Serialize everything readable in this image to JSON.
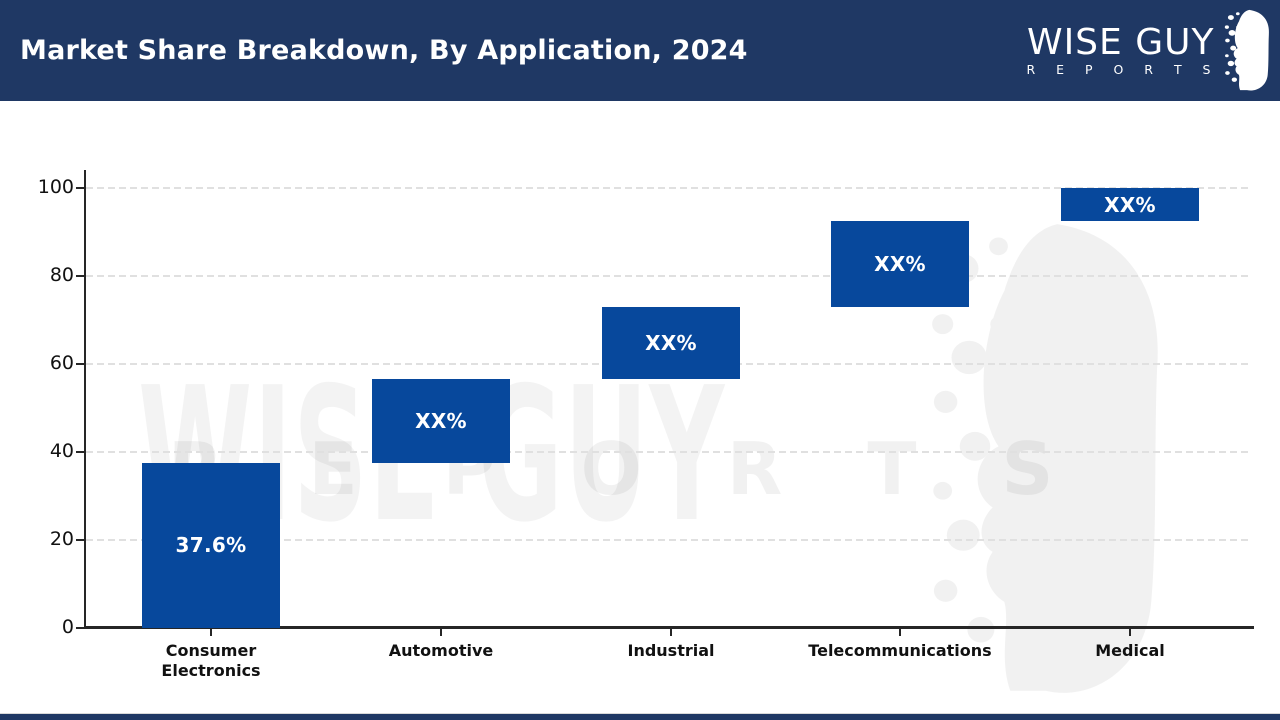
{
  "header": {
    "title": "Market Share Breakdown, By Application, 2024",
    "logo": {
      "line1": "WISE GUY",
      "line2": "R E P O R T S"
    }
  },
  "watermark": {
    "line1": "WISE GUY",
    "line2": "R E P O R T S"
  },
  "chart_data": {
    "type": "bar",
    "subtype": "waterfall",
    "title": "Market Share Breakdown, By Application, 2024",
    "xlabel": "",
    "ylabel": "",
    "categories": [
      "Consumer Electronics",
      "Automotive",
      "Industrial",
      "Telecommunications",
      "Medical"
    ],
    "segments": [
      {
        "category": "Consumer Electronics",
        "tick_lines": [
          "Consumer",
          "Electronics"
        ],
        "start": 0,
        "end": 37.6,
        "label": "37.6%"
      },
      {
        "category": "Automotive",
        "tick_lines": [
          "Automotive"
        ],
        "start": 37.6,
        "end": 56.5,
        "label": "XX%"
      },
      {
        "category": "Industrial",
        "tick_lines": [
          "Industrial"
        ],
        "start": 56.5,
        "end": 73.0,
        "label": "XX%"
      },
      {
        "category": "Telecommunications",
        "tick_lines": [
          "Telecommunications"
        ],
        "start": 73.0,
        "end": 92.5,
        "label": "XX%"
      },
      {
        "category": "Medical",
        "tick_lines": [
          "Medical"
        ],
        "start": 92.5,
        "end": 100,
        "label": "XX%"
      }
    ],
    "values": [
      37.6,
      18.9,
      16.5,
      19.5,
      7.5
    ],
    "yticks": [
      0,
      20,
      40,
      60,
      80,
      100
    ],
    "ylim": [
      0,
      105
    ],
    "grid": "horizontal-dashed",
    "legend": "none",
    "bar_color": "#07489c",
    "bar_label_color": "#ffffff",
    "axis_color": "#262626",
    "header_color": "#1f3864"
  }
}
